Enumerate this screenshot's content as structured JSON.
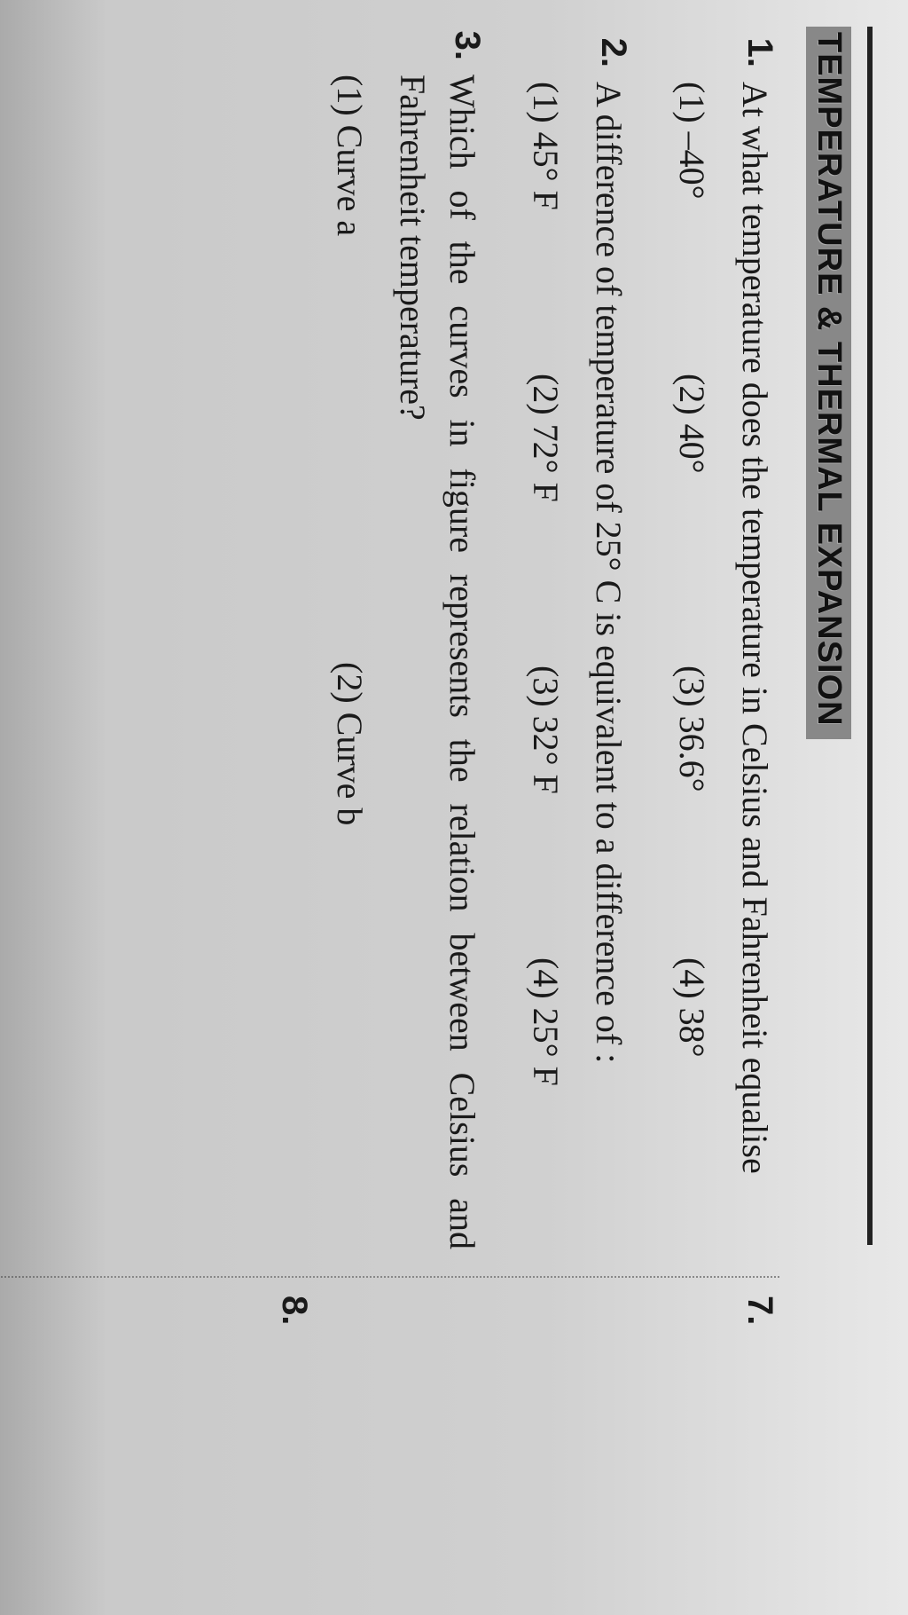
{
  "section_header": "TEMPERATURE & THERMAL EXPANSION",
  "left": {
    "q1": {
      "num": "1.",
      "text": "At what temperature does the temperature in Celsius and Fahrenheit equalise",
      "opts": [
        "(1) –40°",
        "(2) 40°",
        "(3) 36.6°",
        "(4) 38°"
      ]
    },
    "q2": {
      "num": "2.",
      "text_a": "A difference of temperature of 25° C is equivalent to a difference of :",
      "opts": [
        "(1) 45° F",
        "(2) 72° F",
        "(3) 32° F",
        "(4) 25° F"
      ]
    },
    "q3": {
      "num": "3.",
      "text": "Which of the curves in figure represents the relation between Celsius and Fahrenheit temperature?",
      "opts": [
        "(1) Curve a",
        "(2) Curve b"
      ]
    }
  },
  "right": {
    "n7": "7.",
    "n8": "8."
  },
  "style": {
    "bg": "#d8d8d8",
    "text": "#1a1a1a",
    "header_bg": "#888888",
    "font_size_body": 40,
    "font_size_header": 38
  }
}
